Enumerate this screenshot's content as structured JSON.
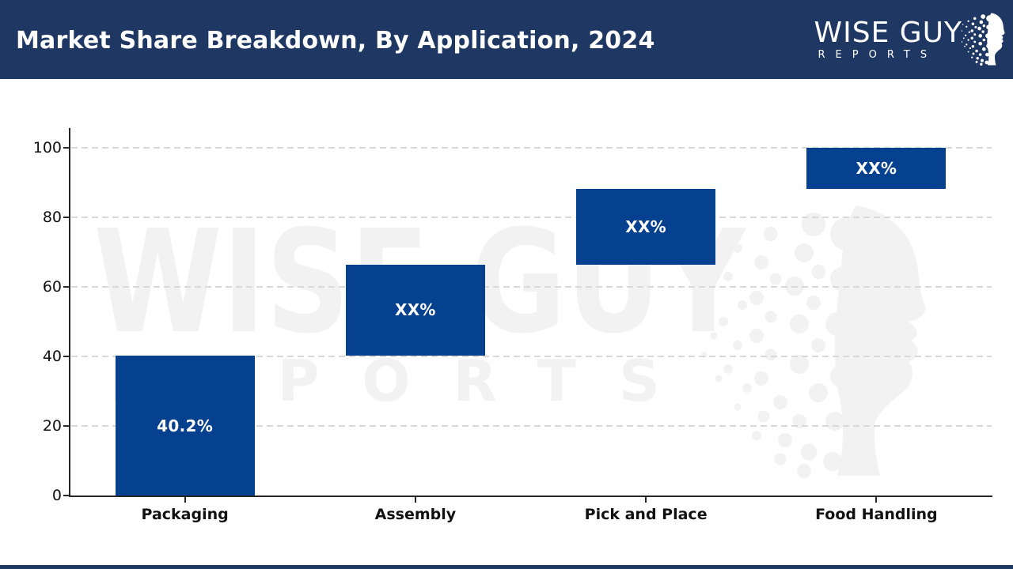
{
  "header": {
    "title": "Market Share Breakdown, By Application, 2024",
    "logo": {
      "line1": "WISE GUY",
      "line2": "REPORTS"
    }
  },
  "watermark": {
    "line1": "WISE GUY",
    "line2": "REPORTS"
  },
  "colors": {
    "header_bg": "#1f3863",
    "bar": "#06418f",
    "bar_label": "#ffffff",
    "grid": "#d9d9d9",
    "axis": "#262626",
    "tick_label": "#111111",
    "watermark": "#f2f2f2"
  },
  "chart_data": {
    "type": "bar",
    "subtype": "floating-waterfall",
    "title": "Market Share Breakdown, By Application, 2024",
    "categories": [
      "Packaging",
      "Assembly",
      "Pick and Place",
      "Food Handling"
    ],
    "series": [
      {
        "name": "Market share (%)",
        "segments": [
          {
            "category": "Packaging",
            "start": 0,
            "end": 40.2,
            "label": "40.2%"
          },
          {
            "category": "Assembly",
            "start": 40.2,
            "end": 66.4,
            "label": "XX%"
          },
          {
            "category": "Pick and Place",
            "start": 66.4,
            "end": 88.2,
            "label": "XX%"
          },
          {
            "category": "Food Handling",
            "start": 88.2,
            "end": 100,
            "label": "XX%"
          }
        ]
      }
    ],
    "xlabel": "",
    "ylabel": "",
    "ylim": [
      0,
      100
    ],
    "yticks": [
      0,
      20,
      40,
      60,
      80,
      100
    ],
    "grid": "horizontal-dashed",
    "legend": "none"
  }
}
